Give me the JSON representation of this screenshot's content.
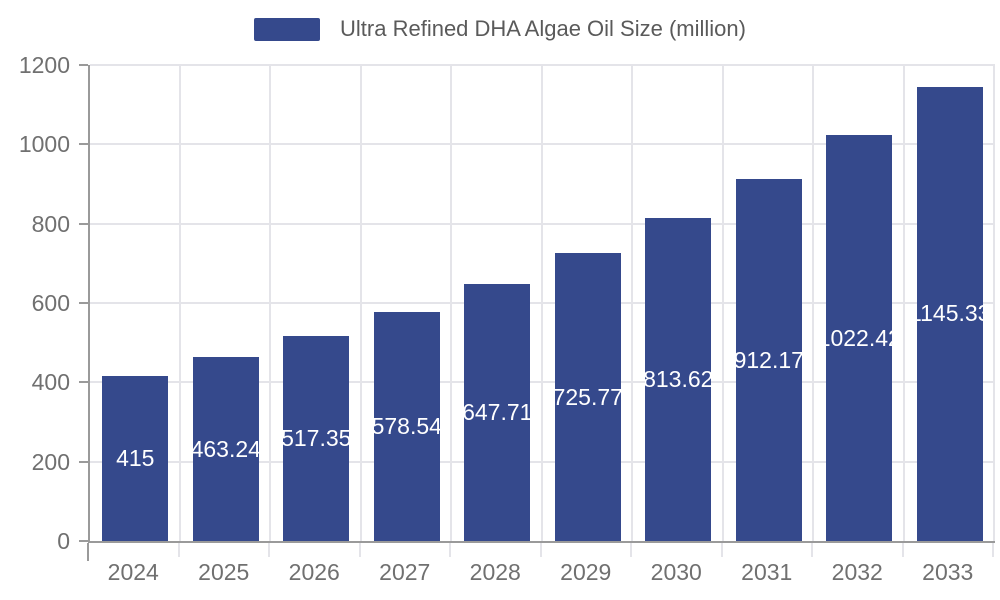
{
  "legend": {
    "label": "Ultra Refined DHA Algae Oil Size (million)"
  },
  "colors": {
    "bar": "#35498C",
    "bar_label": "#FFFFFF",
    "grid": "#E4E4E9",
    "axis_line": "#9A9A9A",
    "axis_text": "#707070",
    "legend_text": "#5A5A5A"
  },
  "chart_data": {
    "type": "bar",
    "title": "",
    "xlabel": "",
    "ylabel": "",
    "categories": [
      "2024",
      "2025",
      "2026",
      "2027",
      "2028",
      "2029",
      "2030",
      "2031",
      "2032",
      "2033"
    ],
    "series": [
      {
        "name": "Ultra Refined DHA Algae Oil Size (million)",
        "values": [
          415,
          463.24,
          517.35,
          578.54,
          647.71,
          725.77,
          813.62,
          912.17,
          1022.42,
          1145.33
        ]
      }
    ],
    "value_labels": [
      "415",
      "463.24",
      "517.35",
      "578.54",
      "647.71",
      "725.77",
      "813.62",
      "912.17",
      "1022.42",
      "1145.33"
    ],
    "ylim": [
      0,
      1200
    ],
    "yticks": [
      0,
      200,
      400,
      600,
      800,
      1000,
      1200
    ],
    "grid": true,
    "legend_position": "top",
    "bar_label_position": "inside-center"
  }
}
